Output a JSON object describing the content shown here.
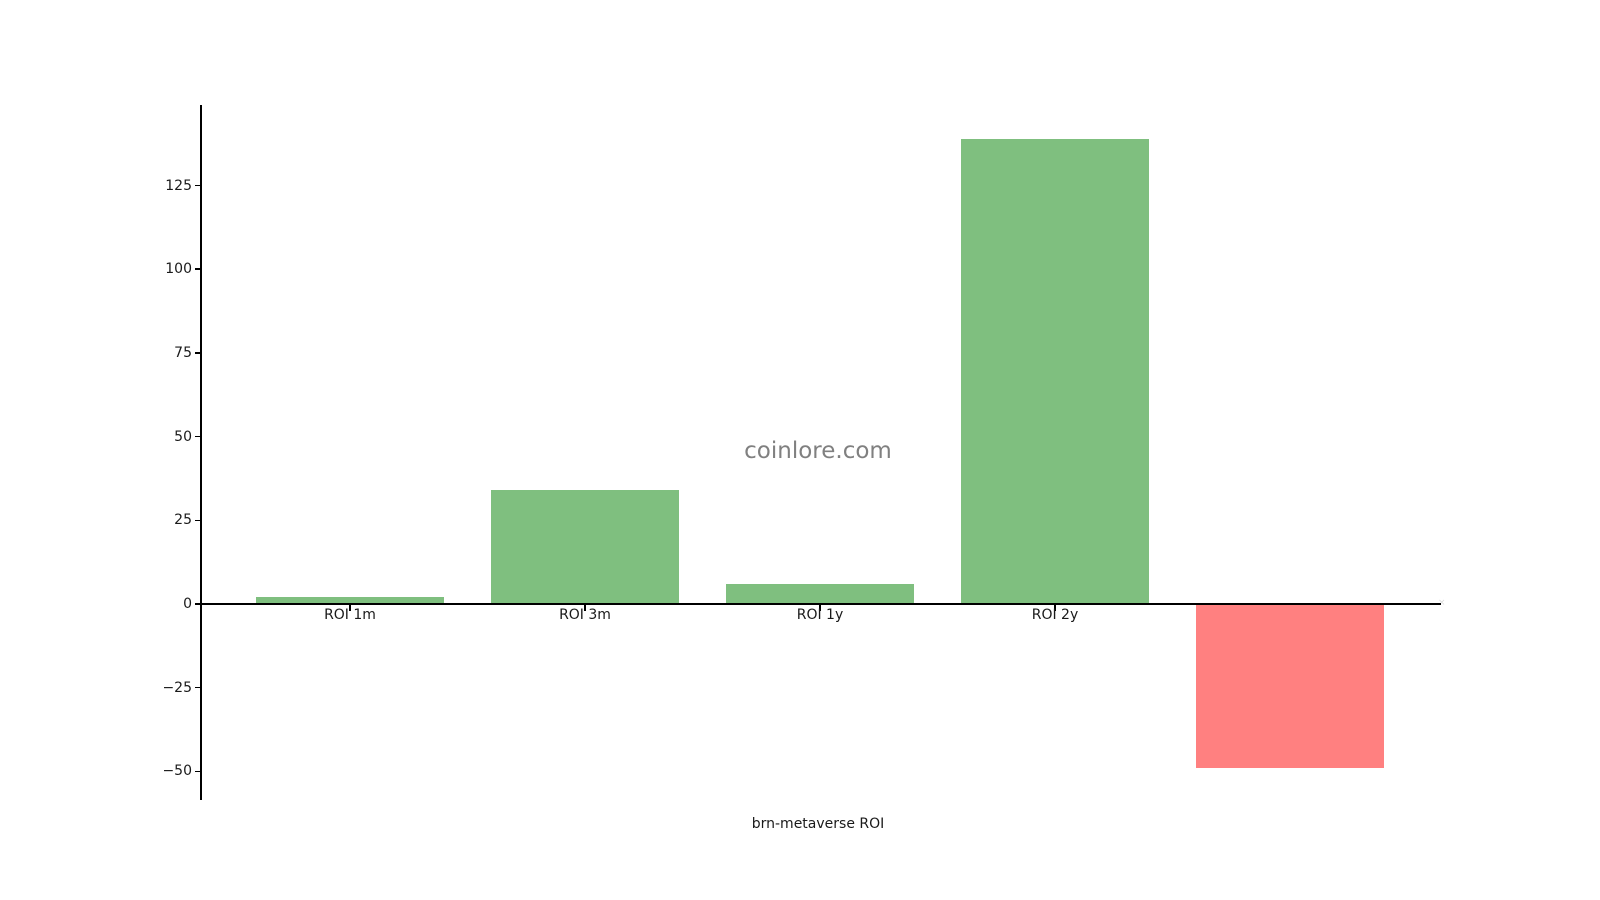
{
  "chart_data": {
    "type": "bar",
    "title": "brn-metaverse ROI",
    "watermark": "coinlore.com",
    "categories": [
      "ROI 1m",
      "ROI 3m",
      "ROI 1y",
      "ROI 2y",
      ""
    ],
    "values": [
      2,
      34,
      6,
      139,
      -49
    ],
    "bar_colors": [
      "#7fbf7f",
      "#7fbf7f",
      "#7fbf7f",
      "#7fbf7f",
      "#ff8080"
    ],
    "positive_color": "#7fbf7f",
    "negative_color": "#ff8080",
    "xlabel": "",
    "ylabel": "",
    "yticks": [
      125,
      100,
      75,
      50,
      25,
      0,
      -25,
      -50
    ],
    "ylim": [
      -59,
      149
    ],
    "grid": false,
    "legend": "none"
  }
}
